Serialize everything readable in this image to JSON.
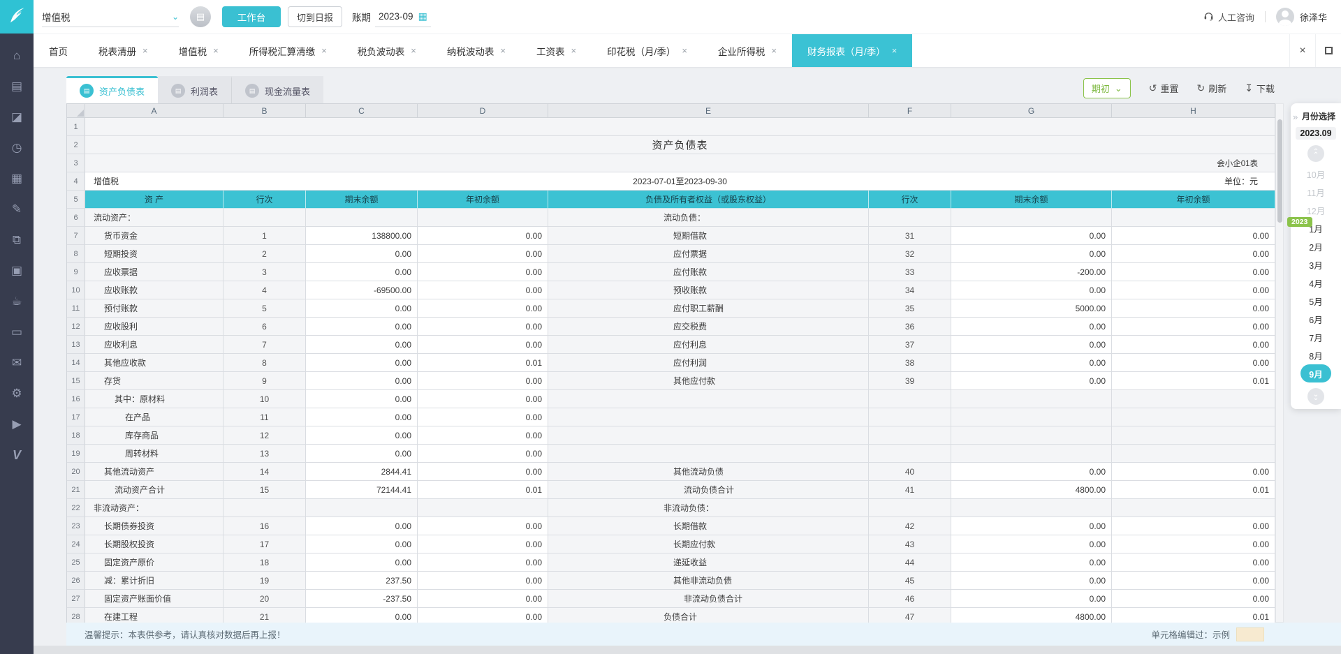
{
  "topbar": {
    "selected_module": "增值税",
    "workbench_button": "工作台",
    "switch_daily_button": "切到日报",
    "period_label": "账期",
    "period_value": "2023-09",
    "support_label": "人工咨询",
    "username": "徐泽华"
  },
  "sidebar": {
    "icons": [
      {
        "name": "home",
        "glyph": "⌂"
      },
      {
        "name": "ledger",
        "glyph": "▤"
      },
      {
        "name": "bar-chart",
        "glyph": "◪"
      },
      {
        "name": "clock",
        "glyph": "◷"
      },
      {
        "name": "company",
        "glyph": "▦"
      },
      {
        "name": "edit-doc",
        "glyph": "✎"
      },
      {
        "name": "apps",
        "glyph": "⧉"
      },
      {
        "name": "archive-box",
        "glyph": "▣"
      },
      {
        "name": "tea-service",
        "glyph": "☕"
      },
      {
        "name": "monitor",
        "glyph": "▭"
      },
      {
        "name": "message",
        "glyph": "✉"
      },
      {
        "name": "settings",
        "glyph": "⚙"
      },
      {
        "name": "video",
        "glyph": "▶"
      },
      {
        "name": "brand-v",
        "glyph": "V"
      }
    ]
  },
  "tabs": [
    {
      "label": "首页",
      "closable": false,
      "active": false
    },
    {
      "label": "税表清册",
      "closable": true,
      "active": false
    },
    {
      "label": "增值税",
      "closable": true,
      "active": false
    },
    {
      "label": "所得税汇算清缴",
      "closable": true,
      "active": false
    },
    {
      "label": "税负波动表",
      "closable": true,
      "active": false
    },
    {
      "label": "纳税波动表",
      "closable": true,
      "active": false
    },
    {
      "label": "工资表",
      "closable": true,
      "active": false
    },
    {
      "label": "印花税（月/季）",
      "closable": true,
      "active": false
    },
    {
      "label": "企业所得税",
      "closable": true,
      "active": false
    },
    {
      "label": "财务报表（月/季）",
      "closable": true,
      "active": true
    }
  ],
  "window_controls": {
    "close": "×",
    "fullscreen": "fullscreen"
  },
  "report_tabs": [
    {
      "label": "资产负债表",
      "active": true
    },
    {
      "label": "利润表",
      "active": false
    },
    {
      "label": "现金流量表",
      "active": false
    }
  ],
  "toolbar": {
    "period_select": "期初",
    "reset_label": "重置",
    "refresh_label": "刷新",
    "download_label": "下载"
  },
  "sheet": {
    "title": "资产负债表",
    "form_code": "会小企01表",
    "tax_label": "增值税",
    "date_range": "2023-07-01至2023-09-30",
    "unit": "单位：元",
    "column_letters": [
      "A",
      "B",
      "C",
      "D",
      "E",
      "F",
      "G",
      "H"
    ],
    "row_numbers": [
      "1",
      "2",
      "3",
      "4",
      "5"
    ],
    "header": [
      "资 产",
      "行次",
      "期末余额",
      "年初余额",
      "负债及所有者权益（或股东权益）",
      "行次",
      "期末余额",
      "年初余额"
    ],
    "rows": [
      {
        "n": "6",
        "a": "流动资产：",
        "ai": 0,
        "b": "",
        "c": "",
        "d": "",
        "e": "流动负债：",
        "ei": 0,
        "f": "",
        "g": "",
        "h": ""
      },
      {
        "n": "7",
        "a": "货币资金",
        "ai": 1,
        "b": "1",
        "c": "138800.00",
        "d": "0.00",
        "e": "短期借款",
        "ei": 1,
        "f": "31",
        "g": "0.00",
        "h": "0.00"
      },
      {
        "n": "8",
        "a": "短期投资",
        "ai": 1,
        "b": "2",
        "c": "0.00",
        "d": "0.00",
        "e": "应付票据",
        "ei": 1,
        "f": "32",
        "g": "0.00",
        "h": "0.00"
      },
      {
        "n": "9",
        "a": "应收票据",
        "ai": 1,
        "b": "3",
        "c": "0.00",
        "d": "0.00",
        "e": "应付账款",
        "ei": 1,
        "f": "33",
        "g": "-200.00",
        "h": "0.00"
      },
      {
        "n": "10",
        "a": "应收账款",
        "ai": 1,
        "b": "4",
        "c": "-69500.00",
        "d": "0.00",
        "e": "预收账款",
        "ei": 1,
        "f": "34",
        "g": "0.00",
        "h": "0.00"
      },
      {
        "n": "11",
        "a": "预付账款",
        "ai": 1,
        "b": "5",
        "c": "0.00",
        "d": "0.00",
        "e": "应付职工薪酬",
        "ei": 1,
        "f": "35",
        "g": "5000.00",
        "h": "0.00"
      },
      {
        "n": "12",
        "a": "应收股利",
        "ai": 1,
        "b": "6",
        "c": "0.00",
        "d": "0.00",
        "e": "应交税费",
        "ei": 1,
        "f": "36",
        "g": "0.00",
        "h": "0.00"
      },
      {
        "n": "13",
        "a": "应收利息",
        "ai": 1,
        "b": "7",
        "c": "0.00",
        "d": "0.00",
        "e": "应付利息",
        "ei": 1,
        "f": "37",
        "g": "0.00",
        "h": "0.00"
      },
      {
        "n": "14",
        "a": "其他应收款",
        "ai": 1,
        "b": "8",
        "c": "0.00",
        "d": "0.01",
        "e": "应付利润",
        "ei": 1,
        "f": "38",
        "g": "0.00",
        "h": "0.00"
      },
      {
        "n": "15",
        "a": "存货",
        "ai": 1,
        "b": "9",
        "c": "0.00",
        "d": "0.00",
        "e": "其他应付款",
        "ei": 1,
        "f": "39",
        "g": "0.00",
        "h": "0.01"
      },
      {
        "n": "16",
        "a": "其中：原材料",
        "ai": 2,
        "b": "10",
        "c": "0.00",
        "d": "0.00",
        "e": "",
        "ei": 0,
        "f": "",
        "g": "",
        "h": ""
      },
      {
        "n": "17",
        "a": "在产品",
        "ai": 3,
        "b": "11",
        "c": "0.00",
        "d": "0.00",
        "e": "",
        "ei": 0,
        "f": "",
        "g": "",
        "h": ""
      },
      {
        "n": "18",
        "a": "库存商品",
        "ai": 3,
        "b": "12",
        "c": "0.00",
        "d": "0.00",
        "e": "",
        "ei": 0,
        "f": "",
        "g": "",
        "h": ""
      },
      {
        "n": "19",
        "a": "周转材料",
        "ai": 3,
        "b": "13",
        "c": "0.00",
        "d": "0.00",
        "e": "",
        "ei": 0,
        "f": "",
        "g": "",
        "h": ""
      },
      {
        "n": "20",
        "a": "其他流动资产",
        "ai": 1,
        "b": "14",
        "c": "2844.41",
        "d": "0.00",
        "e": "其他流动负债",
        "ei": 1,
        "f": "40",
        "g": "0.00",
        "h": "0.00"
      },
      {
        "n": "21",
        "a": "流动资产合计",
        "ai": 2,
        "b": "15",
        "c": "72144.41",
        "d": "0.01",
        "e": "流动负债合计",
        "ei": 2,
        "f": "41",
        "g": "4800.00",
        "h": "0.01"
      },
      {
        "n": "22",
        "a": "非流动资产：",
        "ai": 0,
        "b": "",
        "c": "",
        "d": "",
        "e": "非流动负债：",
        "ei": 0,
        "f": "",
        "g": "",
        "h": ""
      },
      {
        "n": "23",
        "a": "长期债券投资",
        "ai": 1,
        "b": "16",
        "c": "0.00",
        "d": "0.00",
        "e": "长期借款",
        "ei": 1,
        "f": "42",
        "g": "0.00",
        "h": "0.00"
      },
      {
        "n": "24",
        "a": "长期股权投资",
        "ai": 1,
        "b": "17",
        "c": "0.00",
        "d": "0.00",
        "e": "长期应付款",
        "ei": 1,
        "f": "43",
        "g": "0.00",
        "h": "0.00"
      },
      {
        "n": "25",
        "a": "固定资产原价",
        "ai": 1,
        "b": "18",
        "c": "0.00",
        "d": "0.00",
        "e": "递延收益",
        "ei": 1,
        "f": "44",
        "g": "0.00",
        "h": "0.00"
      },
      {
        "n": "26",
        "a": "减：累计折旧",
        "ai": 1,
        "b": "19",
        "c": "237.50",
        "d": "0.00",
        "e": "其他非流动负债",
        "ei": 1,
        "f": "45",
        "g": "0.00",
        "h": "0.00"
      },
      {
        "n": "27",
        "a": "固定资产账面价值",
        "ai": 1,
        "b": "20",
        "c": "-237.50",
        "d": "0.00",
        "e": "非流动负债合计",
        "ei": 2,
        "f": "46",
        "g": "0.00",
        "h": "0.00"
      },
      {
        "n": "28",
        "a": "在建工程",
        "ai": 1,
        "b": "21",
        "c": "0.00",
        "d": "0.00",
        "e": "负债合计",
        "ei": 0,
        "f": "47",
        "g": "4800.00",
        "h": "0.01"
      }
    ]
  },
  "month_panel": {
    "title": "月份选择",
    "current": "2023.09",
    "year_badge": "2023",
    "months": [
      {
        "label": "10月",
        "state": "disabled"
      },
      {
        "label": "11月",
        "state": "disabled"
      },
      {
        "label": "12月",
        "state": "disabled"
      },
      {
        "label": "1月",
        "state": ""
      },
      {
        "label": "2月",
        "state": ""
      },
      {
        "label": "3月",
        "state": ""
      },
      {
        "label": "4月",
        "state": ""
      },
      {
        "label": "5月",
        "state": ""
      },
      {
        "label": "6月",
        "state": ""
      },
      {
        "label": "7月",
        "state": ""
      },
      {
        "label": "8月",
        "state": ""
      },
      {
        "label": "9月",
        "state": "selected"
      }
    ]
  },
  "footer": {
    "tip": "温馨提示：本表供参考，请认真核对数据后再上报！",
    "edited_label": "单元格编辑过：示例"
  },
  "colors": {
    "primary_teal": "#3ac0d2",
    "sidebar_dark": "#373c4e",
    "header_teal": "#3cc2d3",
    "green_accent": "#8bc34a",
    "footer_blue": "#e9f4fb",
    "edited_swatch": "#f7ead0"
  }
}
